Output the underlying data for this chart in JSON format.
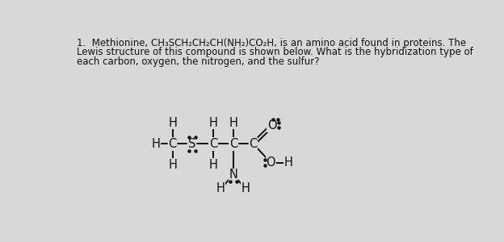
{
  "bg_color": "#d8d8d8",
  "text_color": "#111111",
  "title_line1": "1.  Methionine, CH₃SCH₂CH₂CH(NH₂)CO₂H, is an amino acid found in proteins. The",
  "title_line2": "Lewis structure of this compound is shown below. What is the hybridization type of",
  "title_line3": "each carbon, oxygen, the nitrogen, and the sulfur?",
  "font_size_text": 8.5,
  "font_size_atom": 10.5
}
